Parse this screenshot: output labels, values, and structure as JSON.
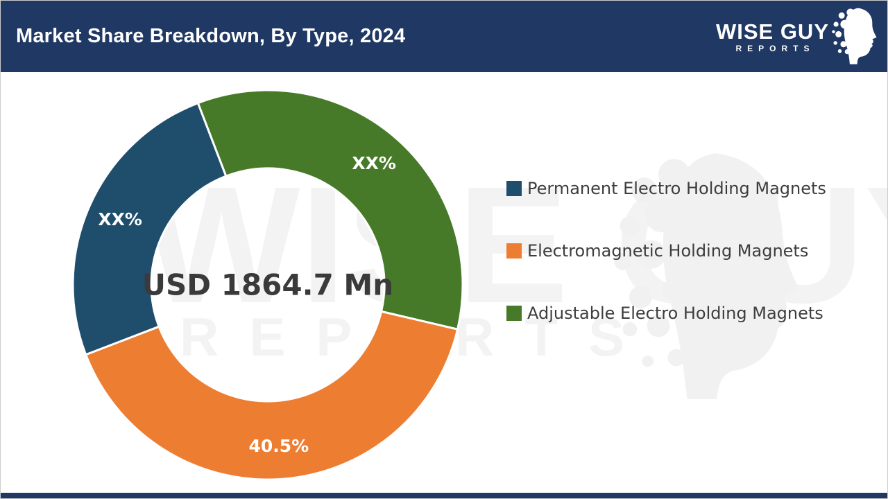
{
  "header": {
    "title": "Market Share Breakdown, By Type, 2024",
    "bg_color": "#1f3864",
    "logo": {
      "line1": "WISE GUY",
      "line2": "REPORTS"
    }
  },
  "watermark": {
    "line1": "WISE GUY",
    "line2": "REPORTS"
  },
  "chart_data": {
    "type": "pie",
    "subtype": "donut",
    "title": "Market Share Breakdown, By Type, 2024",
    "center_label": "USD 1864.7 Mn",
    "start_angle_deg": -21,
    "legend_position": "right",
    "segments": [
      {
        "label": "Adjustable Electro Holding Magnets",
        "display": "XX%",
        "value": 34.5,
        "color": "#467a28"
      },
      {
        "label": "Electromagnetic Holding Magnets",
        "display": "40.5%",
        "value": 40.5,
        "color": "#ed7d31"
      },
      {
        "label": "Permanent Electro Holding Magnets",
        "display": "XX%",
        "value": 25.0,
        "color": "#1f4e6d"
      }
    ],
    "legend": [
      {
        "label": "Permanent Electro Holding Magnets",
        "color": "#1f4e6d"
      },
      {
        "label": "Electromagnetic Holding Magnets",
        "color": "#ed7d31"
      },
      {
        "label": "Adjustable Electro Holding Magnets",
        "color": "#467a28"
      }
    ]
  },
  "colors": {
    "header_bg": "#1f3864",
    "center_text": "#3a3a3a",
    "segment_label": "#ffffff",
    "watermark": "#f3f3f3",
    "border": "#cccccc"
  }
}
